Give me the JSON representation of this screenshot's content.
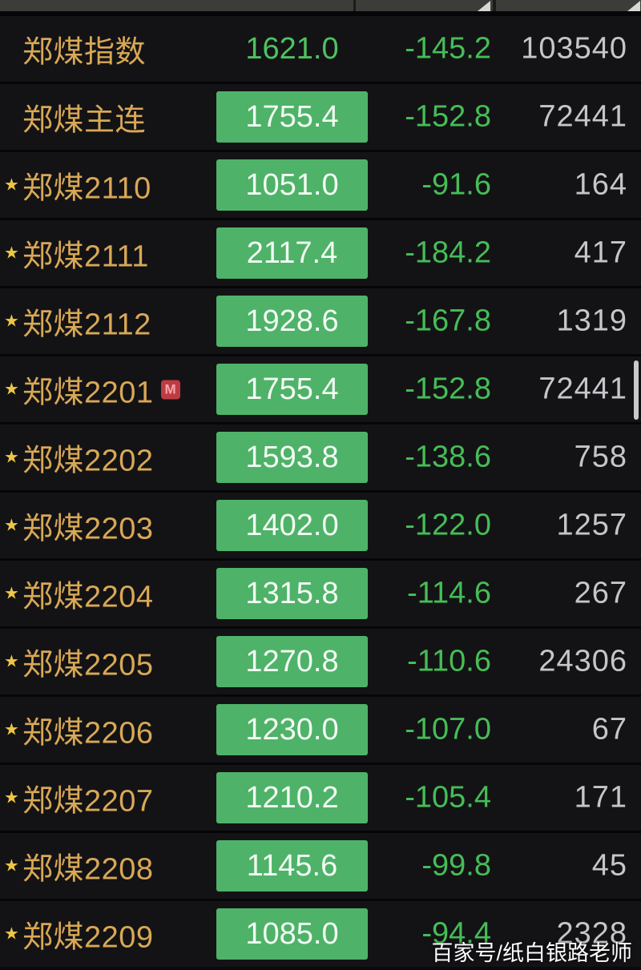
{
  "app": {
    "description_label": "futures-quote-list",
    "columns": [
      "name",
      "last_price",
      "change",
      "volume"
    ]
  },
  "colors": {
    "up_down_green": "#46bd56",
    "price_box_green": "#4fb269",
    "contract_gold": "#d9a855",
    "star_gold": "#ecc645",
    "volume_gray": "#c6c6ca",
    "badge_red": "#bf3b42",
    "row_bg": "#131316",
    "header_bg": "#3c3c39"
  },
  "rows": [
    {
      "name": "郑煤指数",
      "starred": false,
      "badge": "",
      "price": "1621.0",
      "boxed": false,
      "change": "-145.2",
      "volume": "103540"
    },
    {
      "name": "郑煤主连",
      "starred": false,
      "badge": "",
      "price": "1755.4",
      "boxed": true,
      "change": "-152.8",
      "volume": "72441"
    },
    {
      "name": "郑煤2110",
      "starred": true,
      "badge": "",
      "price": "1051.0",
      "boxed": true,
      "change": "-91.6",
      "volume": "164"
    },
    {
      "name": "郑煤2111",
      "starred": true,
      "badge": "",
      "price": "2117.4",
      "boxed": true,
      "change": "-184.2",
      "volume": "417"
    },
    {
      "name": "郑煤2112",
      "starred": true,
      "badge": "",
      "price": "1928.6",
      "boxed": true,
      "change": "-167.8",
      "volume": "1319"
    },
    {
      "name": "郑煤2201",
      "starred": true,
      "badge": "M",
      "price": "1755.4",
      "boxed": true,
      "change": "-152.8",
      "volume": "72441"
    },
    {
      "name": "郑煤2202",
      "starred": true,
      "badge": "",
      "price": "1593.8",
      "boxed": true,
      "change": "-138.6",
      "volume": "758"
    },
    {
      "name": "郑煤2203",
      "starred": true,
      "badge": "",
      "price": "1402.0",
      "boxed": true,
      "change": "-122.0",
      "volume": "1257"
    },
    {
      "name": "郑煤2204",
      "starred": true,
      "badge": "",
      "price": "1315.8",
      "boxed": true,
      "change": "-114.6",
      "volume": "267"
    },
    {
      "name": "郑煤2205",
      "starred": true,
      "badge": "",
      "price": "1270.8",
      "boxed": true,
      "change": "-110.6",
      "volume": "24306"
    },
    {
      "name": "郑煤2206",
      "starred": true,
      "badge": "",
      "price": "1230.0",
      "boxed": true,
      "change": "-107.0",
      "volume": "67"
    },
    {
      "name": "郑煤2207",
      "starred": true,
      "badge": "",
      "price": "1210.2",
      "boxed": true,
      "change": "-105.4",
      "volume": "171"
    },
    {
      "name": "郑煤2208",
      "starred": true,
      "badge": "",
      "price": "1145.6",
      "boxed": true,
      "change": "-99.8",
      "volume": "45"
    },
    {
      "name": "郑煤2209",
      "starred": true,
      "badge": "",
      "price": "1085.0",
      "boxed": true,
      "change": "-94.4",
      "volume": "2328"
    }
  ],
  "watermark": "百家号/纸白银路老师"
}
